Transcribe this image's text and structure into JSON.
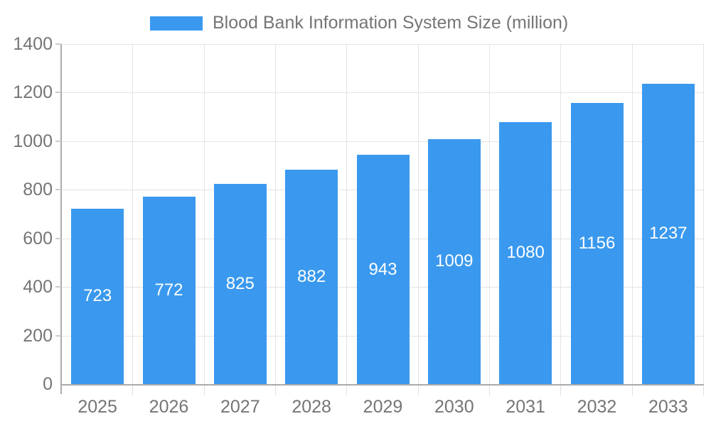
{
  "legend": {
    "label": "Blood Bank Information System Size (million)"
  },
  "chart_data": {
    "type": "bar",
    "title": "Blood Bank Information System Size (million)",
    "xlabel": "",
    "ylabel": "",
    "categories": [
      "2025",
      "2026",
      "2027",
      "2028",
      "2029",
      "2030",
      "2031",
      "2032",
      "2033"
    ],
    "series": [
      {
        "name": "Blood Bank Information System Size (million)",
        "values": [
          723,
          772,
          825,
          882,
          943,
          1009,
          1080,
          1156,
          1237
        ]
      }
    ],
    "bar_value_labels": [
      723,
      772,
      825,
      882,
      943,
      1009,
      1080,
      1156,
      1237
    ],
    "ylim": [
      0,
      1400
    ],
    "yticks": [
      0,
      200,
      400,
      600,
      800,
      1000,
      1200,
      1400
    ],
    "grid": true,
    "legend_position": "top-center"
  },
  "colors": {
    "bar": "#3a99ee",
    "axis_line": "#ababab",
    "gridline": "#e4e4e4",
    "x_tick": "#e0e0e0",
    "y_tick": "#cccccc",
    "axis_text": "#757575",
    "bar_label_text": "#ffffff",
    "background": "#ffffff"
  }
}
